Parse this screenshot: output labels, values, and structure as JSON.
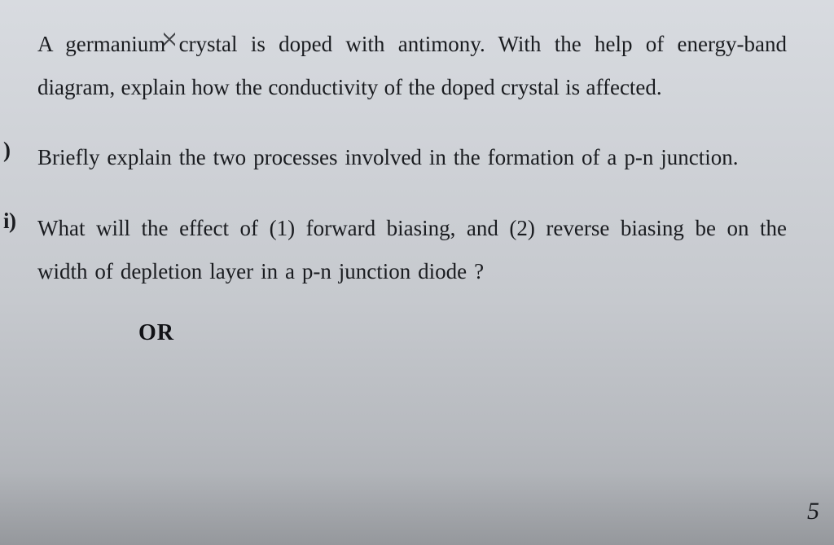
{
  "document": {
    "background_gradient_top": "#d8dbe0",
    "background_gradient_bottom": "#a6a9ae",
    "text_color": "#1a1c20",
    "font_family": "Georgia, Times New Roman, serif",
    "body_fontsize_pt": 20,
    "line_height": 1.95,
    "questions": [
      {
        "marker": "",
        "text_before_cursor": "A germanium",
        "text_after_cursor": " crystal is doped with antimony. With the help of energy-band diagram, explain how the conductivity of the doped crystal is affected.",
        "has_cursor": true
      },
      {
        "marker": ")",
        "text": "Briefly explain the two processes involved in the formation of a p-n junction."
      },
      {
        "marker": "i)",
        "text": "What will the effect of (1) forward biasing, and (2) reverse biasing be on the width of depletion layer in a p-n junction diode ?"
      }
    ],
    "or_label": "OR",
    "marks": "5"
  }
}
